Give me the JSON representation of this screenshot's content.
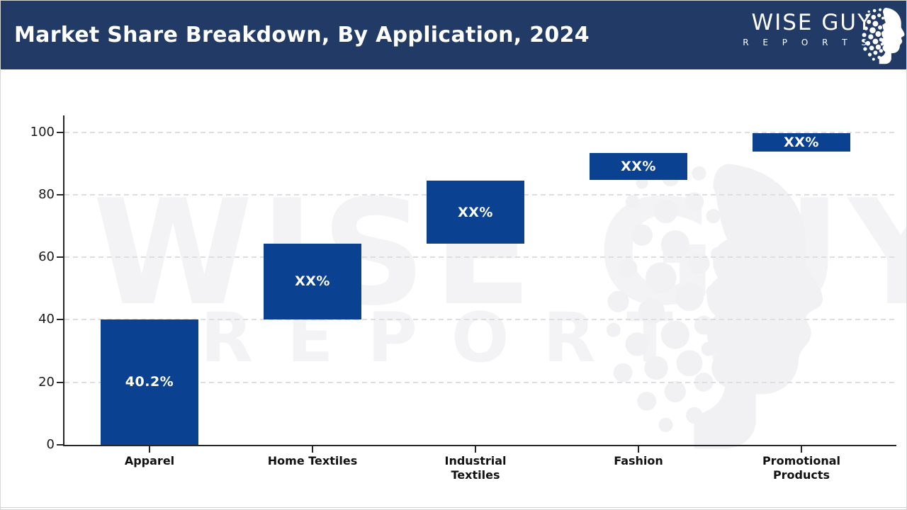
{
  "header": {
    "title": "Market Share Breakdown, By Application, 2024",
    "logo": {
      "line1": "WISE GUY",
      "line2": "R E P O R T S",
      "head_icon": "dotted-head-profile"
    }
  },
  "watermark": {
    "line1": "WISE GUY",
    "line2": "REPORTS"
  },
  "colors": {
    "header_bg": "#213a66",
    "bar": "#0a4191",
    "bar_label": "#ffffff",
    "grid": "#dedede",
    "axis": "#262626",
    "watermark": "#f2f2f4"
  },
  "chart_data": {
    "type": "bar",
    "subtype": "floating-waterfall",
    "title": "Market Share Breakdown, By Application, 2024",
    "categories": [
      "Apparel",
      "Home Textiles",
      "Industrial Textiles",
      "Fashion",
      "Promotional Products"
    ],
    "category_lines": [
      [
        "Apparel"
      ],
      [
        "Home Textiles"
      ],
      [
        "Industrial",
        "Textiles"
      ],
      [
        "Fashion"
      ],
      [
        "Promotional",
        "Products"
      ]
    ],
    "segments": [
      {
        "category": "Apparel",
        "start": 0,
        "end": 40.2,
        "label": "40.2%"
      },
      {
        "category": "Home Textiles",
        "start": 40.2,
        "end": 64.3,
        "label": "XX%"
      },
      {
        "category": "Industrial Textiles",
        "start": 64.3,
        "end": 84.4,
        "label": "XX%"
      },
      {
        "category": "Fashion",
        "start": 84.6,
        "end": 93.3,
        "label": "XX%"
      },
      {
        "category": "Promotional Products",
        "start": 93.7,
        "end": 99.6,
        "label": "XX%"
      }
    ],
    "values": [
      40.2,
      24.1,
      20.1,
      8.7,
      5.9
    ],
    "unit": "%",
    "ylim": [
      0,
      105
    ],
    "yticks": [
      0,
      20,
      40,
      60,
      80,
      100
    ],
    "xlabel": "",
    "ylabel": "",
    "grid": "horizontal-dashed",
    "legend": "none"
  }
}
